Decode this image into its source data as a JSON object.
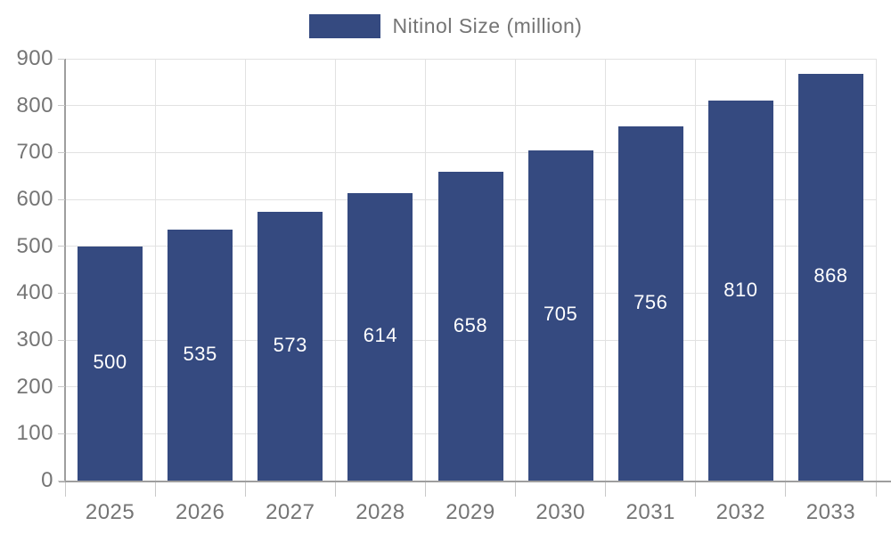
{
  "chart_data": {
    "type": "bar",
    "title": "",
    "legend_label": "Nitinol Size (million)",
    "categories": [
      "2025",
      "2026",
      "2027",
      "2028",
      "2029",
      "2030",
      "2031",
      "2032",
      "2033"
    ],
    "values": [
      500,
      535,
      573,
      614,
      658,
      705,
      756,
      810,
      868
    ],
    "xlabel": "",
    "ylabel": "",
    "ylim": [
      0,
      900
    ],
    "ytick_step": 100,
    "yticks": [
      0,
      100,
      200,
      300,
      400,
      500,
      600,
      700,
      800,
      900
    ],
    "grid": "horizontal-and-vertical",
    "legend_position": "top-center",
    "bar_label_position": "inside-center",
    "colors": {
      "bar": "#354a80",
      "bar_label": "#ffffff",
      "axis_text": "#757575",
      "grid_line": "#e2e2e2",
      "axis_line": "#9e9e9e",
      "tick_line": "#c9c9c9",
      "background": "#ffffff"
    }
  }
}
